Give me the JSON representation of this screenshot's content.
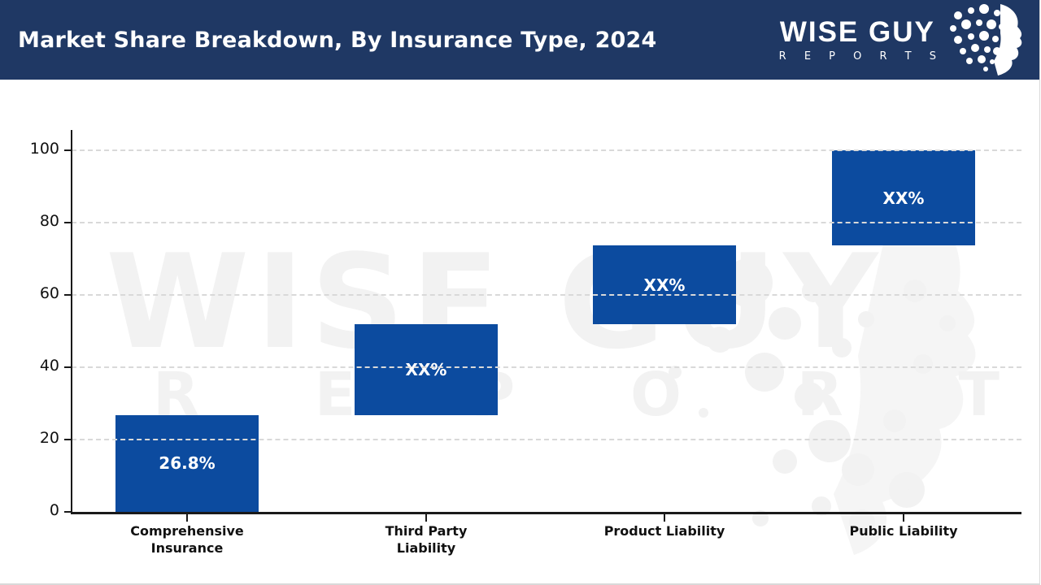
{
  "header": {
    "title": "Market Share Breakdown, By Insurance Type, 2024",
    "logo": {
      "line1": "WISE GUY",
      "line2": "R E P O R T S",
      "icon": "dot-face-profile-icon"
    }
  },
  "watermark": {
    "line1": "WISE GUY",
    "line2": "R E P O R T S",
    "icon": "dot-face-profile-watermark"
  },
  "colors": {
    "header_bg": "#1f3864",
    "bar": "#0c4b9f",
    "bar_label": "#ffffff",
    "axis": "#1a1a1a",
    "gridline": "#d9d9d9",
    "watermark": "#f2f2f2"
  },
  "chart_data": {
    "type": "bar",
    "subtype": "floating-waterfall",
    "title": "Market Share Breakdown, By Insurance Type, 2024",
    "xlabel": "",
    "ylabel": "",
    "ylim": [
      0,
      100
    ],
    "yticks": [
      0,
      20,
      40,
      60,
      80,
      100
    ],
    "grid": "horizontal-dashed, drawn over bars",
    "legend": "none",
    "categories": [
      [
        "Comprehensive",
        "Insurance"
      ],
      [
        "Third Party",
        "Liability"
      ],
      [
        "Product Liability"
      ],
      [
        "Public Liability"
      ]
    ],
    "bars": [
      {
        "category": "Comprehensive Insurance",
        "start": 0,
        "end": 26.8,
        "label": "26.8%"
      },
      {
        "category": "Third Party Liability",
        "start": 26.8,
        "end": 51.9,
        "label": "XX%"
      },
      {
        "category": "Product Liability",
        "start": 51.9,
        "end": 73.7,
        "label": "XX%"
      },
      {
        "category": "Public Liability",
        "start": 73.7,
        "end": 100,
        "label": "XX%"
      }
    ]
  }
}
